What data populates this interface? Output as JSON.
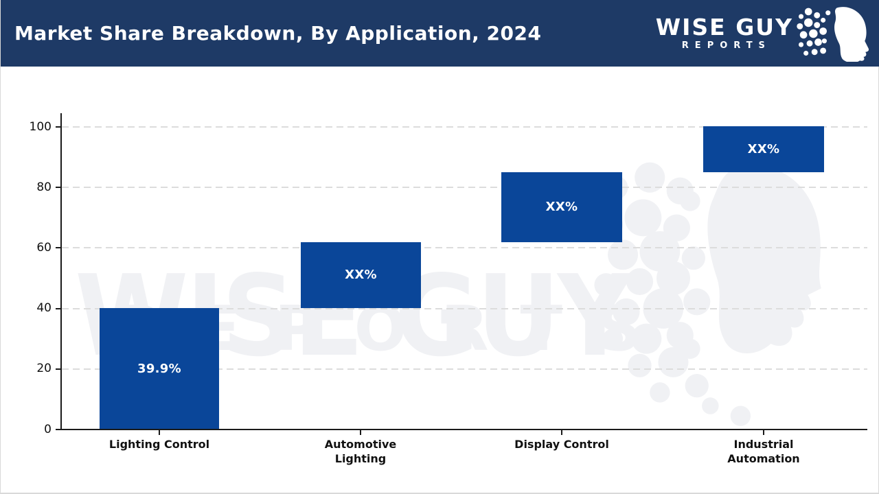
{
  "header": {
    "title": "Market Share Breakdown, By Application, 2024"
  },
  "logo": {
    "line1": "WISE GUY",
    "line2": "REPORTS"
  },
  "watermark": {
    "line1": "WISE GUY",
    "line2": "REPORTS"
  },
  "colors": {
    "header_bg": "#1e3a66",
    "bar": "#0a4699",
    "grid": "#dcdcdc",
    "axis": "#1a1a1a",
    "watermark": "#f0f1f4",
    "page_border": "#d9d9d9"
  },
  "chart_data": {
    "type": "bar",
    "subtype": "waterfall",
    "title": "Market Share Breakdown, By Application, 2024",
    "categories": [
      "Lighting Control",
      "Automotive\nLighting",
      "Display Control",
      "Industrial\nAutomation"
    ],
    "segments": [
      {
        "category": "Lighting Control",
        "start": 0,
        "end": 39.9,
        "label": "39.9%"
      },
      {
        "category": "Automotive Lighting",
        "start": 40,
        "end": 61.7,
        "label": "XX%"
      },
      {
        "category": "Display Control",
        "start": 61.7,
        "end": 84.9,
        "label": "XX%"
      },
      {
        "category": "Industrial Automation",
        "start": 84.9,
        "end": 100,
        "label": "XX%"
      }
    ],
    "yticks": [
      0,
      20,
      40,
      60,
      80,
      100
    ],
    "ylim": [
      0,
      105
    ],
    "xlabel": "",
    "ylabel": "",
    "grid": "dashed-horizontal-light-gray",
    "legend": "none",
    "bar_color": "#0a4699",
    "value_label_color": "#ffffff"
  }
}
